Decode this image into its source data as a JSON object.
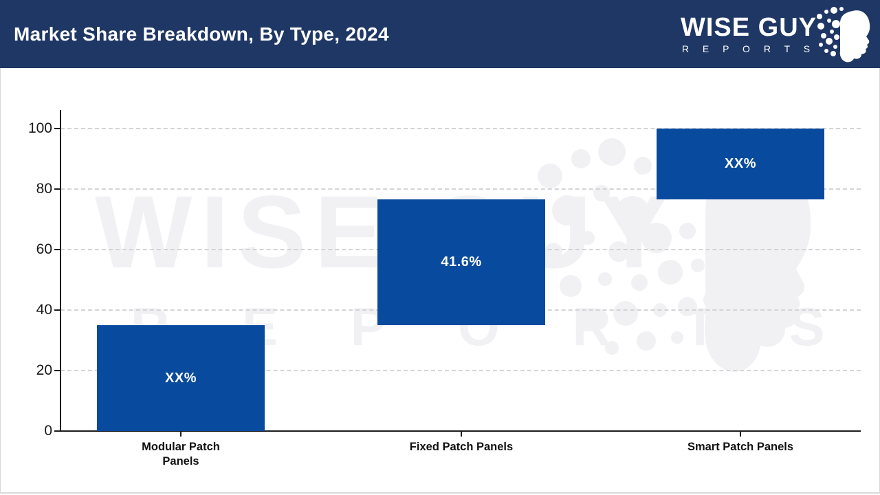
{
  "header": {
    "title": "Market Share Breakdown, By Type, 2024",
    "logo": {
      "wordmark": "WISE GUY",
      "subtext": "R E P O R T S"
    }
  },
  "watermark": {
    "wordmark": "WISE GUY",
    "subtext": "R E P O R T S"
  },
  "chart_data": {
    "type": "bar",
    "subtype": "floating-segment-waterfall",
    "title": "Market Share Breakdown, By Type, 2024",
    "categories": [
      "Modular Patch\nPanels",
      "Fixed Patch Panels",
      "Smart Patch Panels"
    ],
    "series": [
      {
        "name": "Market share (%)",
        "segments": [
          {
            "category": "Modular Patch Panels",
            "start": 0,
            "end": 35,
            "label": "XX%"
          },
          {
            "category": "Fixed Patch Panels",
            "start": 35,
            "end": 76.6,
            "label": "41.6%"
          },
          {
            "category": "Smart Patch Panels",
            "start": 76.6,
            "end": 100,
            "label": "XX%"
          }
        ]
      }
    ],
    "xlabel": "",
    "ylabel": "",
    "yticks": [
      0,
      20,
      40,
      60,
      80,
      100
    ],
    "ylim": [
      0,
      105
    ],
    "grid": "horizontal-dashed",
    "legend": "none",
    "bar_color": "#084A9E",
    "bar_label_color": "#ffffff"
  },
  "colors": {
    "header_bg": "#1F3765",
    "bar": "#084A9E",
    "grid": "#d4d4d6",
    "axis": "#1c1c1c",
    "watermark": "#f1f1f4",
    "border": "#d9d9d9"
  }
}
